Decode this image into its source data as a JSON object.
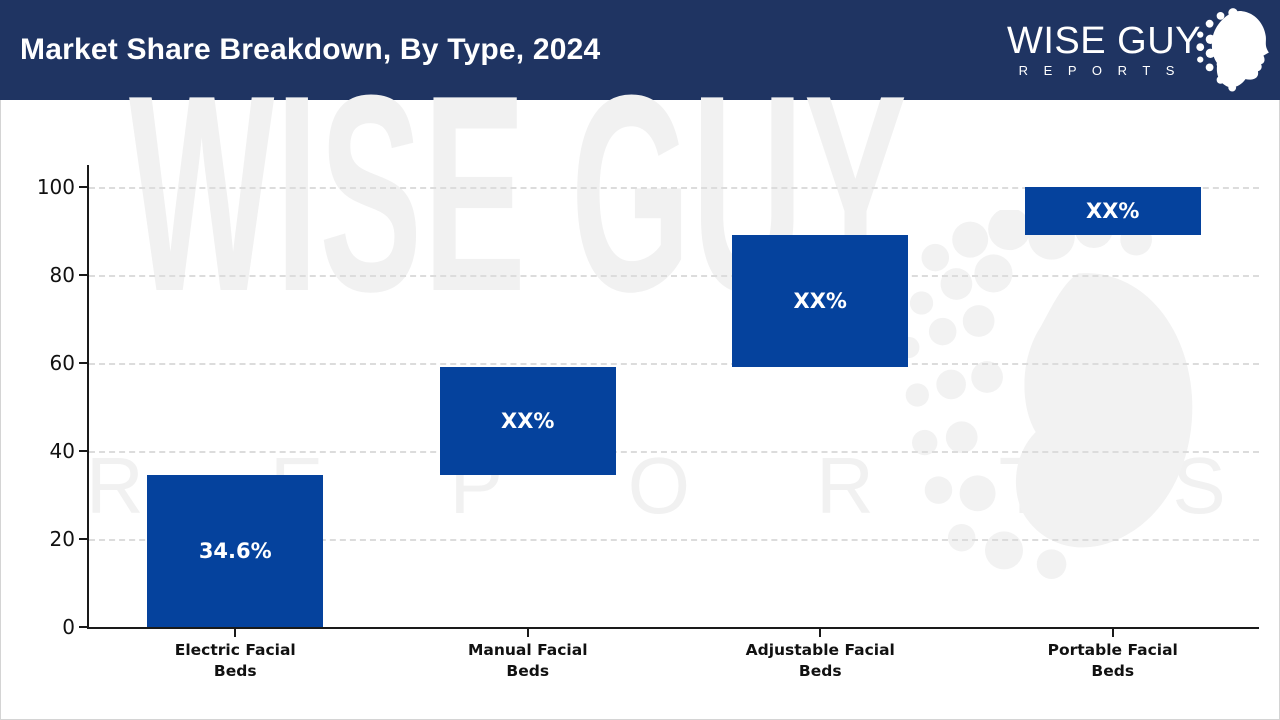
{
  "header": {
    "title": "Market Share Breakdown, By Type, 2024",
    "logo": {
      "brand_top": "WISE GUY",
      "brand_bottom": "R E P O R T S"
    }
  },
  "watermark": {
    "text_top": "WISE GUY",
    "text_bottom": "R E P O R T S"
  },
  "colors": {
    "header_bg": "#1f3462",
    "bar": "#05429d",
    "bar_label": "#ffffff",
    "axis": "#1a1a1a",
    "gridline": "#dcdcdc",
    "watermark": "#f1f1f1"
  },
  "chart_data": {
    "type": "bar",
    "subtype": "waterfall",
    "title": "Market Share Breakdown, By Type, 2024",
    "categories": [
      "Electric Facial Beds",
      "Manual Facial Beds",
      "Adjustable Facial Beds",
      "Portable Facial Beds"
    ],
    "series": [
      {
        "name": "Market share (%)",
        "segments": [
          {
            "category": "Electric Facial Beds",
            "start": 0,
            "end": 34.6,
            "label": "34.6%"
          },
          {
            "category": "Manual Facial Beds",
            "start": 34.6,
            "end": 59.2,
            "label": "XX%"
          },
          {
            "category": "Adjustable Facial Beds",
            "start": 59.2,
            "end": 89.0,
            "label": "XX%"
          },
          {
            "category": "Portable Facial Beds",
            "start": 89.0,
            "end": 100.0,
            "label": "XX%"
          }
        ]
      }
    ],
    "xlabel": "",
    "ylabel": "",
    "ylim": [
      0,
      100
    ],
    "yticks": [
      0,
      20,
      40,
      60,
      80,
      100
    ],
    "grid": "horizontal-dashed",
    "legend": "none"
  }
}
